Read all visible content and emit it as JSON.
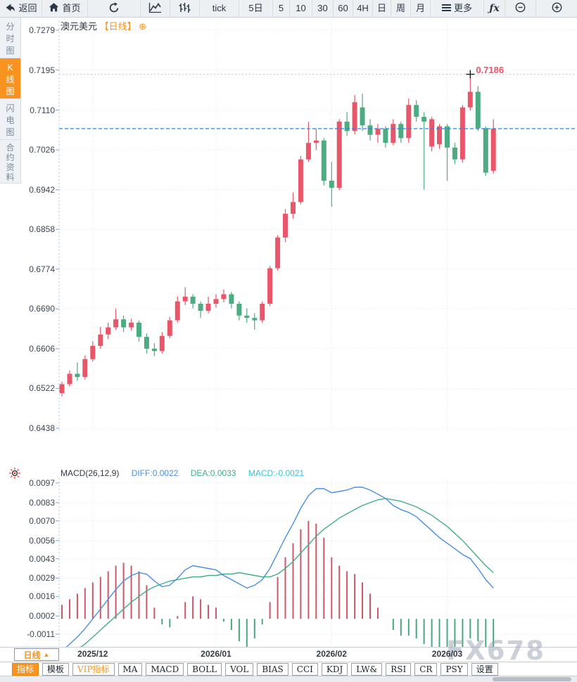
{
  "toolbar": {
    "items": [
      {
        "id": "back",
        "label": "返回",
        "icon": "back-arrow-icon"
      },
      {
        "id": "home",
        "label": "首页",
        "icon": "home-icon"
      },
      {
        "id": "refresh",
        "label": "",
        "icon": "refresh-icon"
      },
      {
        "id": "line-chart",
        "label": "",
        "icon": "line-chart-icon"
      },
      {
        "id": "candle-chart",
        "label": "",
        "icon": "candlestick-icon"
      },
      {
        "id": "tick",
        "label": "tick"
      },
      {
        "id": "5d",
        "label": "5日"
      },
      {
        "id": "5",
        "label": "5"
      },
      {
        "id": "10",
        "label": "10"
      },
      {
        "id": "30",
        "label": "30"
      },
      {
        "id": "60",
        "label": "60"
      },
      {
        "id": "4h",
        "label": "4H"
      },
      {
        "id": "day",
        "label": "日"
      },
      {
        "id": "week",
        "label": "周"
      },
      {
        "id": "month",
        "label": "月"
      },
      {
        "id": "more",
        "label": "更多",
        "icon": "menu-icon"
      },
      {
        "id": "fx",
        "label": "ƒx"
      },
      {
        "id": "zoom-out",
        "label": "",
        "icon": "zoom-out-icon"
      },
      {
        "id": "zoom-in",
        "label": "",
        "icon": "zoom-in-icon"
      }
    ]
  },
  "sidebar": {
    "items": [
      {
        "label": "分时图",
        "active": false
      },
      {
        "label": "K线图",
        "active": true
      },
      {
        "label": "闪电图",
        "active": false
      },
      {
        "label": "合约资料",
        "active": false
      }
    ]
  },
  "header": {
    "symbol": "澳元美元",
    "period_tag": "【日线】",
    "expand_icon": "⊕"
  },
  "macd_header": {
    "name": "MACD(26,12,9)",
    "diff": "DIFF:0.0022",
    "dea": "DEA:0.0033",
    "macd": "MACD:-0.0021"
  },
  "high_label": "0.7186",
  "period_selector": {
    "label": "日线",
    "arrow": "▲"
  },
  "bottom_tabs": [
    {
      "label": "指标",
      "state": "active"
    },
    {
      "label": "模板",
      "state": "normal"
    },
    {
      "label": "VIP指标",
      "state": "vip"
    },
    {
      "label": "MA",
      "state": "normal"
    },
    {
      "label": "MACD",
      "state": "normal"
    },
    {
      "label": "BOLL",
      "state": "normal"
    },
    {
      "label": "VOL",
      "state": "normal"
    },
    {
      "label": "BIAS",
      "state": "normal"
    },
    {
      "label": "CCI",
      "state": "normal"
    },
    {
      "label": "KDJ",
      "state": "normal"
    },
    {
      "label": "LW&",
      "state": "normal"
    },
    {
      "label": "RSI",
      "state": "normal"
    },
    {
      "label": "CR",
      "state": "normal"
    },
    {
      "label": "PSY",
      "state": "normal"
    },
    {
      "label": "设置",
      "state": "normal"
    }
  ],
  "watermark": "FX678",
  "colors": {
    "up": "#e9566a",
    "down": "#4cab80",
    "hist_up": "#cc5868",
    "hist_down": "#49a77e",
    "diff_line": "#4a8fe2",
    "dea_line": "#43ae85",
    "accent_orange": "#f7931e",
    "dashed_line": "#2f80de",
    "high_line": "#f5aab6",
    "high_text": "#ee5168",
    "grid": "#e0e4ea",
    "axis_dot": "#aac9ec",
    "axis_tick": "#8fb4e4"
  },
  "chart_data": {
    "type": "candlestick",
    "symbol": "澳元美元",
    "period": "日线",
    "price_ylim": [
      0.6438,
      0.7279
    ],
    "price_ticks": [
      0.7279,
      0.7195,
      0.711,
      0.7026,
      0.6942,
      0.6858,
      0.6774,
      0.669,
      0.6606,
      0.6522,
      0.6438
    ],
    "last_price": 0.7071,
    "high_marker": {
      "value": 0.7186,
      "candle_index": 53
    },
    "x_months": [
      {
        "label": "2025/12",
        "index": 4
      },
      {
        "label": "2026/01",
        "index": 20
      },
      {
        "label": "2026/02",
        "index": 35
      },
      {
        "label": "2026/03",
        "index": 50
      }
    ],
    "candles": [
      [
        0.6512,
        0.6536,
        0.6505,
        0.6531
      ],
      [
        0.6531,
        0.656,
        0.6526,
        0.6553
      ],
      [
        0.6553,
        0.6577,
        0.6538,
        0.6546
      ],
      [
        0.6546,
        0.6592,
        0.6541,
        0.6584
      ],
      [
        0.6584,
        0.6622,
        0.6579,
        0.6612
      ],
      [
        0.6612,
        0.6652,
        0.6606,
        0.6636
      ],
      [
        0.6636,
        0.6661,
        0.6626,
        0.6651
      ],
      [
        0.6651,
        0.6691,
        0.6646,
        0.6668
      ],
      [
        0.6668,
        0.6676,
        0.6641,
        0.6651
      ],
      [
        0.6651,
        0.6669,
        0.6644,
        0.6661
      ],
      [
        0.6661,
        0.6666,
        0.6621,
        0.6631
      ],
      [
        0.6631,
        0.6638,
        0.6596,
        0.6606
      ],
      [
        0.6606,
        0.6618,
        0.6591,
        0.6601
      ],
      [
        0.6601,
        0.6641,
        0.6596,
        0.6633
      ],
      [
        0.6633,
        0.6673,
        0.6628,
        0.6666
      ],
      [
        0.6666,
        0.6716,
        0.6661,
        0.6706
      ],
      [
        0.6706,
        0.6736,
        0.6698,
        0.6716
      ],
      [
        0.6716,
        0.6721,
        0.6691,
        0.6701
      ],
      [
        0.6701,
        0.6706,
        0.6671,
        0.6686
      ],
      [
        0.6686,
        0.6716,
        0.6681,
        0.6701
      ],
      [
        0.6701,
        0.6721,
        0.6693,
        0.6711
      ],
      [
        0.6711,
        0.6731,
        0.6704,
        0.6721
      ],
      [
        0.6721,
        0.6726,
        0.6691,
        0.6701
      ],
      [
        0.6701,
        0.6706,
        0.6666,
        0.6676
      ],
      [
        0.6676,
        0.6691,
        0.6661,
        0.6671
      ],
      [
        0.6671,
        0.6681,
        0.6646,
        0.6666
      ],
      [
        0.6666,
        0.6706,
        0.6661,
        0.6701
      ],
      [
        0.6701,
        0.6781,
        0.6696,
        0.6776
      ],
      [
        0.6776,
        0.6846,
        0.6771,
        0.6841
      ],
      [
        0.6841,
        0.6901,
        0.6831,
        0.6891
      ],
      [
        0.6891,
        0.6936,
        0.6881,
        0.6916
      ],
      [
        0.6916,
        0.7013,
        0.6911,
        0.7006
      ],
      [
        0.7006,
        0.7086,
        0.7001,
        0.7041
      ],
      [
        0.7041,
        0.7071,
        0.7026,
        0.7046
      ],
      [
        0.7046,
        0.7051,
        0.6951,
        0.6961
      ],
      [
        0.6961,
        0.7001,
        0.6906,
        0.6946
      ],
      [
        0.6946,
        0.7091,
        0.6941,
        0.7086
      ],
      [
        0.7086,
        0.7106,
        0.7056,
        0.7066
      ],
      [
        0.7066,
        0.7142,
        0.7059,
        0.7127
      ],
      [
        0.7116,
        0.7145,
        0.7066,
        0.7078
      ],
      [
        0.7078,
        0.7091,
        0.7046,
        0.7058
      ],
      [
        0.7058,
        0.7081,
        0.7041,
        0.7071
      ],
      [
        0.7071,
        0.7076,
        0.7031,
        0.7041
      ],
      [
        0.7041,
        0.7091,
        0.7036,
        0.7081
      ],
      [
        0.7081,
        0.7086,
        0.7041,
        0.7051
      ],
      [
        0.7051,
        0.7135,
        0.7041,
        0.7121
      ],
      [
        0.7121,
        0.7131,
        0.7086,
        0.7096
      ],
      [
        0.7096,
        0.7106,
        0.6942,
        0.7086
      ],
      [
        0.7033,
        0.7096,
        0.7023,
        0.7091
      ],
      [
        0.7038,
        0.7081,
        0.7028,
        0.7076
      ],
      [
        0.7076,
        0.7081,
        0.6961,
        0.7031
      ],
      [
        0.7031,
        0.7041,
        0.6996,
        0.7006
      ],
      [
        0.7006,
        0.7121,
        0.6999,
        0.7116
      ],
      [
        0.7116,
        0.7186,
        0.7109,
        0.7149
      ],
      [
        0.7149,
        0.7161,
        0.7066,
        0.7072
      ],
      [
        0.7072,
        0.7076,
        0.6971,
        0.6978
      ],
      [
        0.6982,
        0.7091,
        0.6976,
        0.7071
      ]
    ],
    "macd": {
      "params": "26,12,9",
      "diff_last": 0.0022,
      "dea_last": 0.0033,
      "macd_last": -0.0021,
      "ylim": [
        -0.0025,
        0.0097
      ],
      "ticks": [
        0.0097,
        0.0083,
        0.007,
        0.0056,
        0.0043,
        0.0029,
        0.0016,
        0.0002,
        -0.0011,
        -0.0025
      ],
      "diff": [
        -0.0023,
        -0.0018,
        -0.0013,
        -0.0007,
        0.0,
        0.0007,
        0.0014,
        0.0021,
        0.0027,
        0.0031,
        0.0033,
        0.0032,
        0.0027,
        0.0023,
        0.0024,
        0.0029,
        0.0035,
        0.0038,
        0.0037,
        0.0036,
        0.0035,
        0.0031,
        0.0028,
        0.0025,
        0.0022,
        0.0024,
        0.0028,
        0.0036,
        0.0047,
        0.0058,
        0.0068,
        0.0079,
        0.0088,
        0.0093,
        0.0093,
        0.009,
        0.0091,
        0.0092,
        0.0094,
        0.0094,
        0.0092,
        0.0089,
        0.0086,
        0.0081,
        0.0078,
        0.0076,
        0.0073,
        0.0068,
        0.0063,
        0.0058,
        0.0054,
        0.005,
        0.0046,
        0.0043,
        0.0036,
        0.0028,
        0.0022
      ],
      "dea": [
        -0.0028,
        -0.0025,
        -0.0022,
        -0.0018,
        -0.0013,
        -0.0008,
        -0.0003,
        0.0002,
        0.0007,
        0.0012,
        0.0016,
        0.002,
        0.0023,
        0.0025,
        0.0027,
        0.0028,
        0.0029,
        0.003,
        0.003,
        0.0031,
        0.0031,
        0.0032,
        0.0032,
        0.0033,
        0.0032,
        0.0031,
        0.003,
        0.003,
        0.0032,
        0.0036,
        0.0041,
        0.0047,
        0.0053,
        0.0059,
        0.0064,
        0.0068,
        0.0072,
        0.0075,
        0.0078,
        0.0081,
        0.0083,
        0.0085,
        0.0086,
        0.0085,
        0.0084,
        0.0082,
        0.008,
        0.0077,
        0.0074,
        0.007,
        0.0066,
        0.0061,
        0.0056,
        0.005,
        0.0044,
        0.0038,
        0.0033
      ]
    }
  }
}
